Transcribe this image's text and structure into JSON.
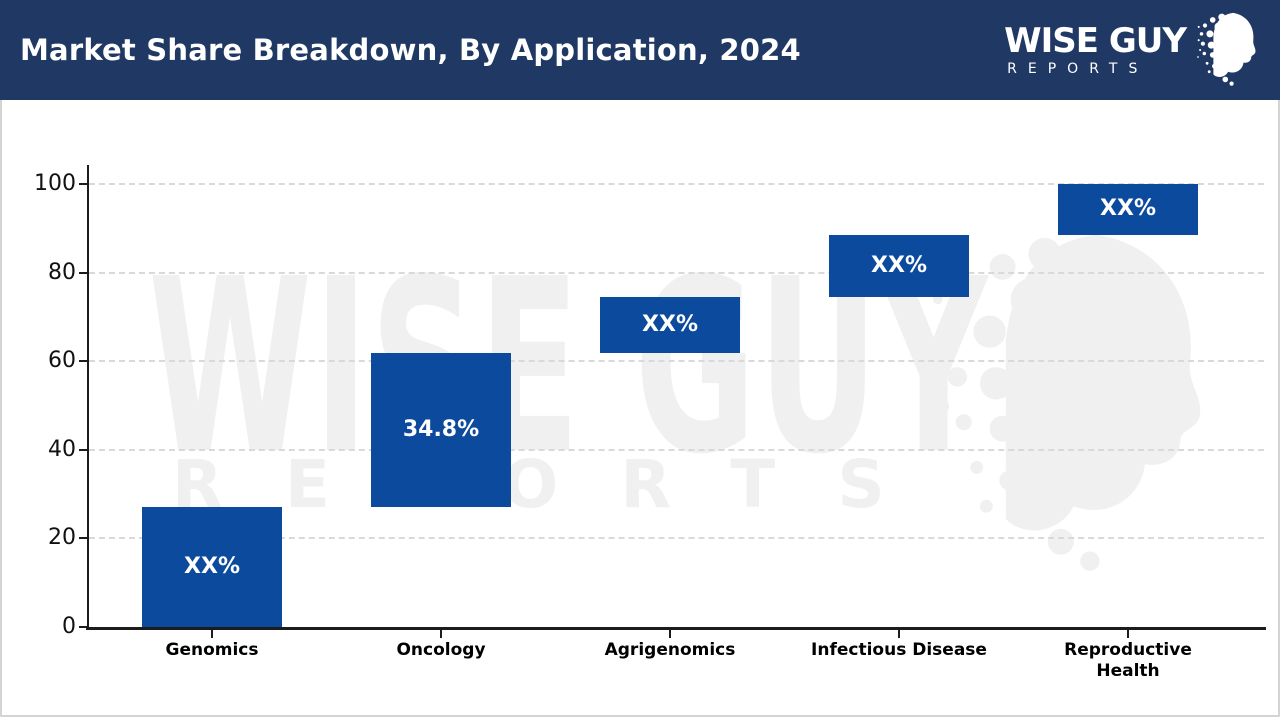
{
  "header": {
    "title": "Market Share Breakdown, By Application, 2024",
    "logo": {
      "line1": "WISE GUY",
      "line2": "REPORTS"
    }
  },
  "watermark": {
    "line1": "WISE GUY",
    "line2": "REPORTS"
  },
  "colors": {
    "header_bg": "#1f3864",
    "bar": "#0c4a9e",
    "bar_label_text": "#ffffff",
    "gridline": "#d9d9d9",
    "axis": "#1c1c1c",
    "watermark": "#f0f0f0"
  },
  "chart_data": {
    "type": "bar",
    "subtype": "waterfall",
    "title": "Market Share Breakdown, By Application, 2024",
    "categories": [
      "Genomics",
      "Oncology",
      "Agrigenomics",
      "Infectious Disease",
      "Reproductive Health"
    ],
    "segments": [
      {
        "category": "Genomics",
        "start": 0,
        "end": 27,
        "value_label": "XX%"
      },
      {
        "category": "Oncology",
        "start": 27,
        "end": 61.8,
        "value_label": "34.8%"
      },
      {
        "category": "Agrigenomics",
        "start": 61.8,
        "end": 74.4,
        "value_label": "XX%"
      },
      {
        "category": "Infectious Disease",
        "start": 74.4,
        "end": 88.6,
        "value_label": "XX%"
      },
      {
        "category": "Reproductive Health",
        "start": 88.6,
        "end": 100,
        "value_label": "XX%"
      }
    ],
    "yticks": [
      0,
      20,
      40,
      60,
      80,
      100
    ],
    "ylim": [
      0,
      100
    ],
    "xlabel": "",
    "ylabel": "",
    "grid": "horizontal-dashed",
    "legend": "none",
    "bar_color": "#0c4a9e"
  }
}
